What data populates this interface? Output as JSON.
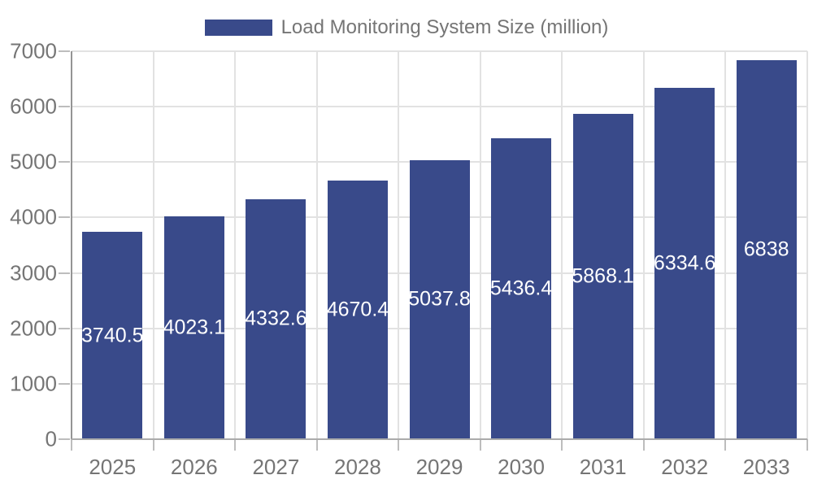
{
  "page": {
    "background": "#FFFFFF"
  },
  "legend": {
    "label": "Load Monitoring System Size (million)"
  },
  "chart_data": {
    "type": "bar",
    "title": "Load Monitoring System Size (million)",
    "xlabel": "",
    "ylabel": "",
    "categories": [
      "2025",
      "2026",
      "2027",
      "2028",
      "2029",
      "2030",
      "2031",
      "2032",
      "2033"
    ],
    "values": [
      3740.5,
      4023.1,
      4332.6,
      4670.4,
      5037.8,
      5436.4,
      5868.1,
      6334.6,
      6838
    ],
    "bar_labels": [
      "3740.5",
      "4023.1",
      "4332.6",
      "4670.4",
      "5037.8",
      "5436.4",
      "5868.1",
      "6334.6",
      "6838"
    ],
    "ylim": [
      0,
      7000
    ],
    "ytick_step": 1000,
    "yticks": [
      0,
      1000,
      2000,
      3000,
      4000,
      5000,
      6000,
      7000
    ],
    "grid": true,
    "legend_position": "top-center",
    "bar_label_position": "inside-center",
    "colors": {
      "bar": "#394A8A",
      "bar_label_text": "#FFFFFF",
      "grid": "#E2E2E2",
      "y_axis_line": "#949494",
      "x_axis_line": "#ABABAB",
      "tick": "#BDBDBD",
      "axis_text": "#757575",
      "legend_text": "#757575"
    }
  }
}
